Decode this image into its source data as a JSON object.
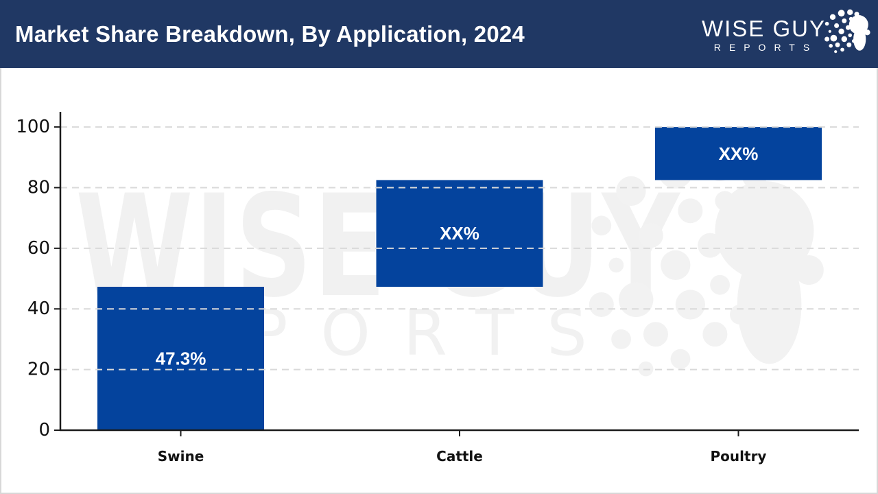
{
  "header": {
    "title": "Market Share Breakdown, By Application, 2024",
    "logo": {
      "line1": "WISE GUY",
      "line2": "REPORTS",
      "icon": "dotted-head-profile"
    }
  },
  "watermark": {
    "line1": "WISE GUY",
    "line2": "REPORTS",
    "icon": "dotted-head-profile"
  },
  "chart_data": {
    "type": "bar",
    "subtype": "floating_segment_waterfall",
    "title": "Market Share Breakdown, By Application, 2024",
    "categories": [
      "Swine",
      "Cattle",
      "Poultry"
    ],
    "series": [
      {
        "name": "Market share (%)",
        "segments": [
          {
            "category": "Swine",
            "start": 0,
            "end": 47.3,
            "label": "47.3%"
          },
          {
            "category": "Cattle",
            "start": 47.3,
            "end": 82.5,
            "label": "XX%"
          },
          {
            "category": "Poultry",
            "start": 82.5,
            "end": 100,
            "label": "XX%"
          }
        ]
      }
    ],
    "xlabel": "",
    "ylabel": "",
    "ylim": [
      0,
      105
    ],
    "yticks": [
      0,
      20,
      40,
      60,
      80,
      100
    ],
    "grid": "horizontal-dashed",
    "legend_position": "none",
    "colors": {
      "bar": "#04439d",
      "bar_label": "#ffffff",
      "grid": "#d9d9d9",
      "axis": "#1a1a1a",
      "tick_label": "#111111",
      "header_bg": "#203864",
      "watermark": "#f1f1f1"
    }
  }
}
